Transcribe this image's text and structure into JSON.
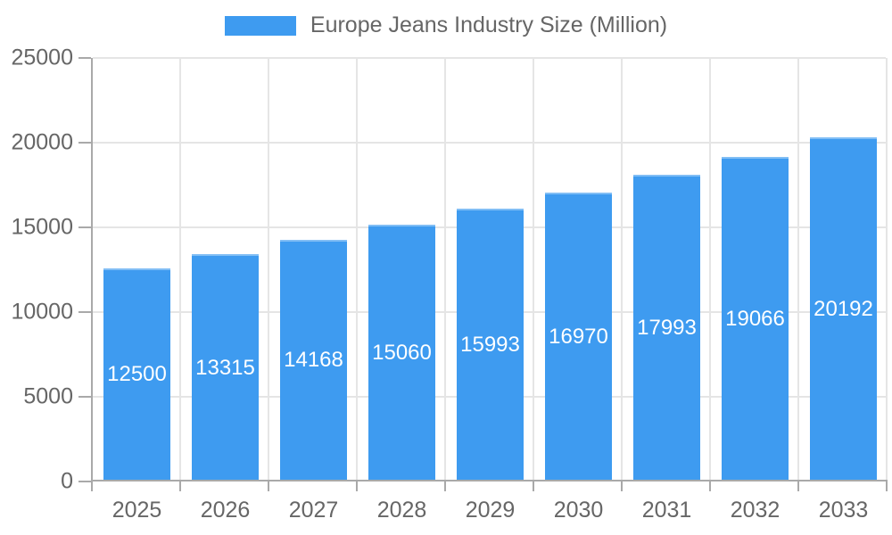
{
  "chart_data": {
    "type": "bar",
    "title": "Europe Jeans Industry Size (Million)",
    "categories": [
      "2025",
      "2026",
      "2027",
      "2028",
      "2029",
      "2030",
      "2031",
      "2032",
      "2033"
    ],
    "values": [
      12500,
      13315,
      14168,
      15060,
      15993,
      16970,
      17993,
      19066,
      20192
    ],
    "xlabel": "",
    "ylabel": "",
    "ylim": [
      0,
      25000
    ],
    "yticks": [
      0,
      5000,
      10000,
      15000,
      20000,
      25000
    ],
    "grid": true,
    "legend_position": "top",
    "colors": {
      "bar": "#3E9BF0",
      "bar_top_edge": "#7DBBF5",
      "gridline": "#E5E5E5",
      "axis_line": "#A9A9A9",
      "tick_text": "#666666",
      "value_label_text": "#FFFFFF",
      "background": "#FFFFFF"
    }
  }
}
